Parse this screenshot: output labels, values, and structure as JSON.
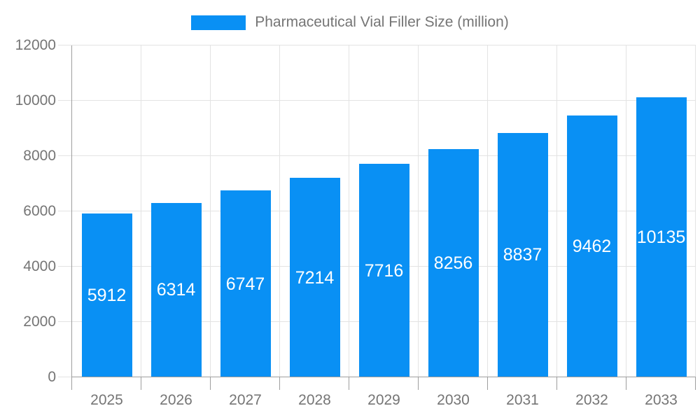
{
  "legend": {
    "label": "Pharmaceutical Vial Filler Size (million)",
    "swatch_color": "#0990f4"
  },
  "chart_data": {
    "type": "bar",
    "title": "Pharmaceutical Vial Filler Size (million)",
    "categories": [
      "2025",
      "2026",
      "2027",
      "2028",
      "2029",
      "2030",
      "2031",
      "2032",
      "2033"
    ],
    "values": [
      5912,
      6314,
      6747,
      7214,
      7716,
      8256,
      8837,
      9462,
      10135
    ],
    "xlabel": "",
    "ylabel": "",
    "ylim": [
      0,
      12000
    ],
    "yticks": [
      0,
      2000,
      4000,
      6000,
      8000,
      10000,
      12000
    ],
    "grid": true,
    "legend_position": "top-center",
    "bar_color": "#0990f4",
    "value_label_color": "#ffffff",
    "tick_label_color": "#757575",
    "gridline_color": "#e3e3e3",
    "axis_color": "#9e9e9e"
  }
}
